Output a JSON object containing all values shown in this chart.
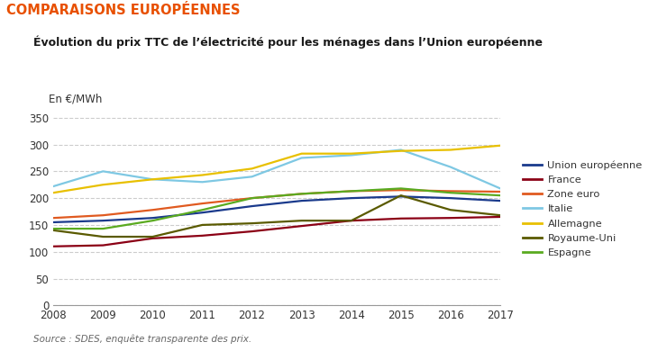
{
  "title_main": "COMPARAISONS EUROPÉENNES",
  "title_sub": "Évolution du prix TTC de l’électricité pour les ménages dans l’Union européenne",
  "ylabel": "En €/MWh",
  "source": "Source : SDES, enquête transparente des prix.",
  "years": [
    2008,
    2009,
    2010,
    2011,
    2012,
    2013,
    2014,
    2015,
    2016,
    2017
  ],
  "series": {
    "Union européenne": {
      "color": "#1a3a8c",
      "data": [
        155,
        158,
        163,
        173,
        185,
        195,
        200,
        203,
        200,
        195
      ]
    },
    "France": {
      "color": "#8b0015",
      "data": [
        110,
        112,
        125,
        130,
        138,
        148,
        158,
        162,
        163,
        165
      ]
    },
    "Zone euro": {
      "color": "#e05a20",
      "data": [
        163,
        168,
        178,
        190,
        200,
        208,
        213,
        215,
        213,
        212
      ]
    },
    "Italie": {
      "color": "#7ec8e3",
      "data": [
        222,
        250,
        235,
        230,
        240,
        275,
        280,
        290,
        258,
        218
      ]
    },
    "Allemagne": {
      "color": "#e8c000",
      "data": [
        210,
        225,
        235,
        243,
        255,
        283,
        283,
        288,
        290,
        298
      ]
    },
    "Royaume-Uni": {
      "color": "#5a5a00",
      "data": [
        140,
        128,
        128,
        150,
        153,
        158,
        158,
        205,
        178,
        168
      ]
    },
    "Espagne": {
      "color": "#5aaa20",
      "data": [
        143,
        143,
        158,
        178,
        200,
        208,
        213,
        218,
        210,
        205
      ]
    }
  },
  "ylim": [
    0,
    360
  ],
  "yticks": [
    0,
    50,
    100,
    150,
    200,
    250,
    300,
    350
  ],
  "background_color": "#ffffff",
  "plot_bg_color": "#ffffff",
  "title_main_color": "#e85000",
  "title_sub_color": "#1a1a1a",
  "grid_color": "#cccccc",
  "source_color": "#666666"
}
